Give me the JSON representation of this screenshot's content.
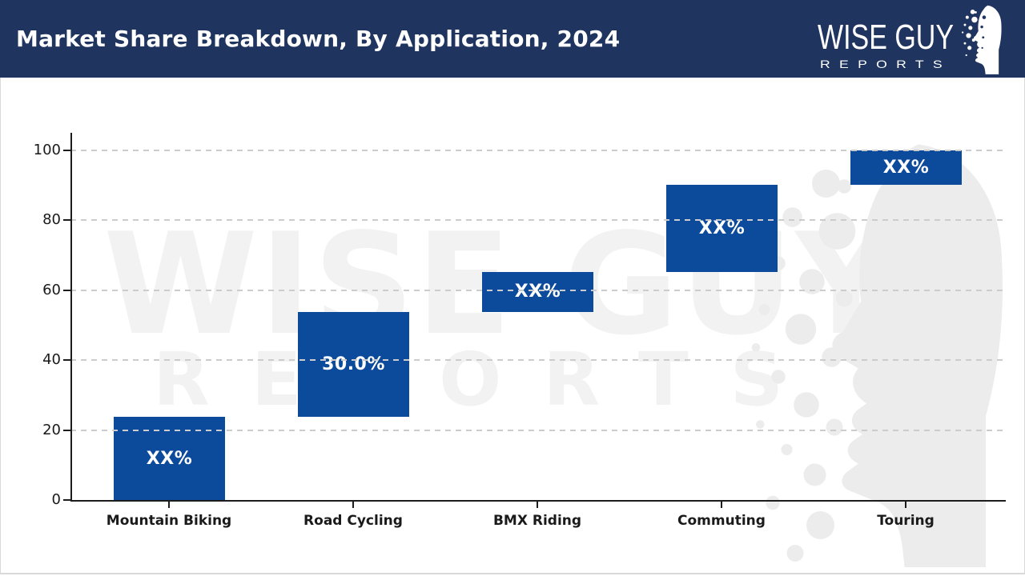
{
  "header": {
    "title": "Market Share Breakdown, By Application, 2024",
    "logo": {
      "primary": "WISE GUY",
      "secondary": "REPORTS"
    }
  },
  "watermark": {
    "line1": "WISE GUY",
    "line2": "REPORTS"
  },
  "chart_data": {
    "type": "bar",
    "subtype": "waterfall",
    "title": "Market Share Breakdown, By Application, 2024",
    "categories": [
      "Mountain Biking",
      "Road Cycling",
      "BMX Riding",
      "Commuting",
      "Touring"
    ],
    "segments": [
      {
        "category": "Mountain Biking",
        "start": 0,
        "end": 23.7,
        "value": 23.7,
        "label": "XX%"
      },
      {
        "category": "Road Cycling",
        "start": 23.7,
        "end": 53.7,
        "value": 30.0,
        "label": "30.0%"
      },
      {
        "category": "BMX Riding",
        "start": 53.7,
        "end": 65.2,
        "value": 11.5,
        "label": "XX%"
      },
      {
        "category": "Commuting",
        "start": 65.2,
        "end": 90.0,
        "value": 24.8,
        "label": "XX%"
      },
      {
        "category": "Touring",
        "start": 90.0,
        "end": 100.0,
        "value": 10.0,
        "label": "XX%"
      }
    ],
    "yticks": [
      0,
      20,
      40,
      60,
      80,
      100
    ],
    "ylim": [
      0,
      105
    ],
    "grid": true,
    "legend": false,
    "xlabel": "",
    "ylabel": ""
  },
  "colors": {
    "header_bg": "#1f3560",
    "title_text": "#ffffff",
    "bar": "#0c4a9b",
    "bar_label": "#ffffff",
    "axis": "#1c1c1c",
    "grid": "#cccccc",
    "tick_text": "#1a1a1a",
    "frame_border": "#d9d9d9",
    "watermark_text": "#f2f2f2",
    "watermark_face": "#ececec"
  }
}
